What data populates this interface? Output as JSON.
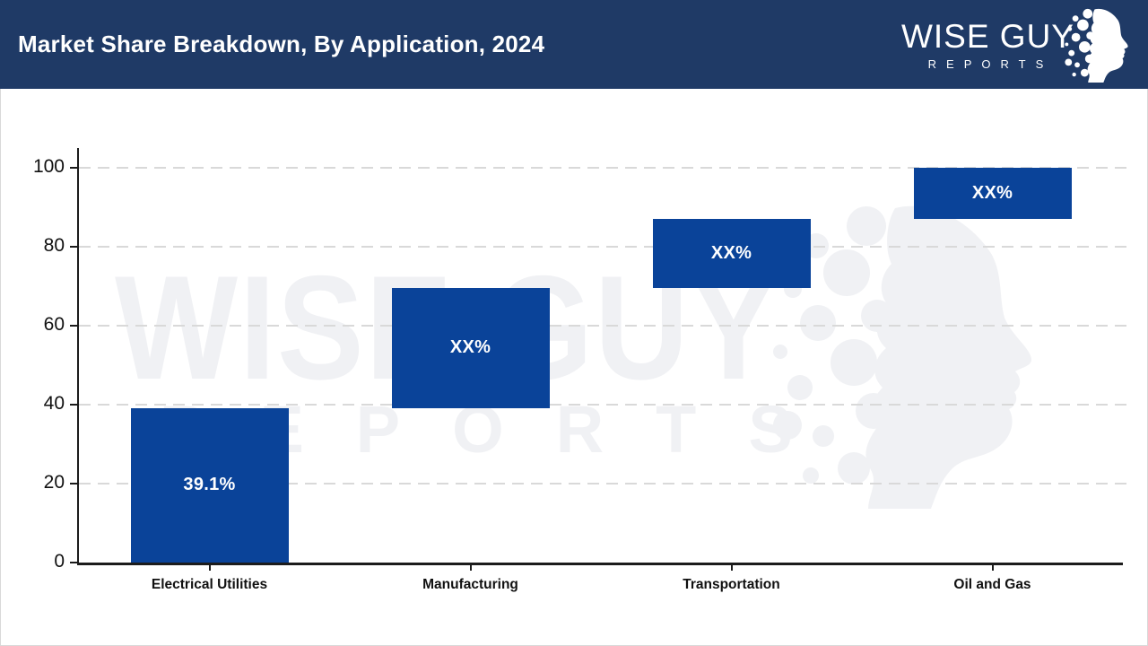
{
  "header": {
    "title": "Market Share Breakdown, By Application, 2024",
    "bg_color": "#1F3A66",
    "logo": {
      "line1": "WISE GUY",
      "line2": "REPORTS"
    }
  },
  "watermark": {
    "line1": "WISE GUY",
    "line2": "REPORTS"
  },
  "chart_data": {
    "type": "bar",
    "subtype": "waterfall",
    "title": "Market Share Breakdown, By Application, 2024",
    "categories": [
      "Electrical Utilities",
      "Manufacturing",
      "Transportation",
      "Oil and Gas"
    ],
    "segments": [
      {
        "category": "Electrical Utilities",
        "start": 0,
        "end": 39.1,
        "label": "39.1%"
      },
      {
        "category": "Manufacturing",
        "start": 39.1,
        "end": 69.6,
        "label": "XX%"
      },
      {
        "category": "Transportation",
        "start": 69.6,
        "end": 87.0,
        "label": "XX%"
      },
      {
        "category": "Oil and Gas",
        "start": 87.0,
        "end": 100.0,
        "label": "XX%"
      }
    ],
    "yticks": [
      0,
      20,
      40,
      60,
      80,
      100
    ],
    "ylim": [
      0,
      105
    ],
    "xlabel": "",
    "ylabel": "",
    "grid": true,
    "grid_style": "dashed",
    "legend": "none",
    "bar_color": "#0A4399",
    "value_label_color": "#FFFFFF"
  }
}
